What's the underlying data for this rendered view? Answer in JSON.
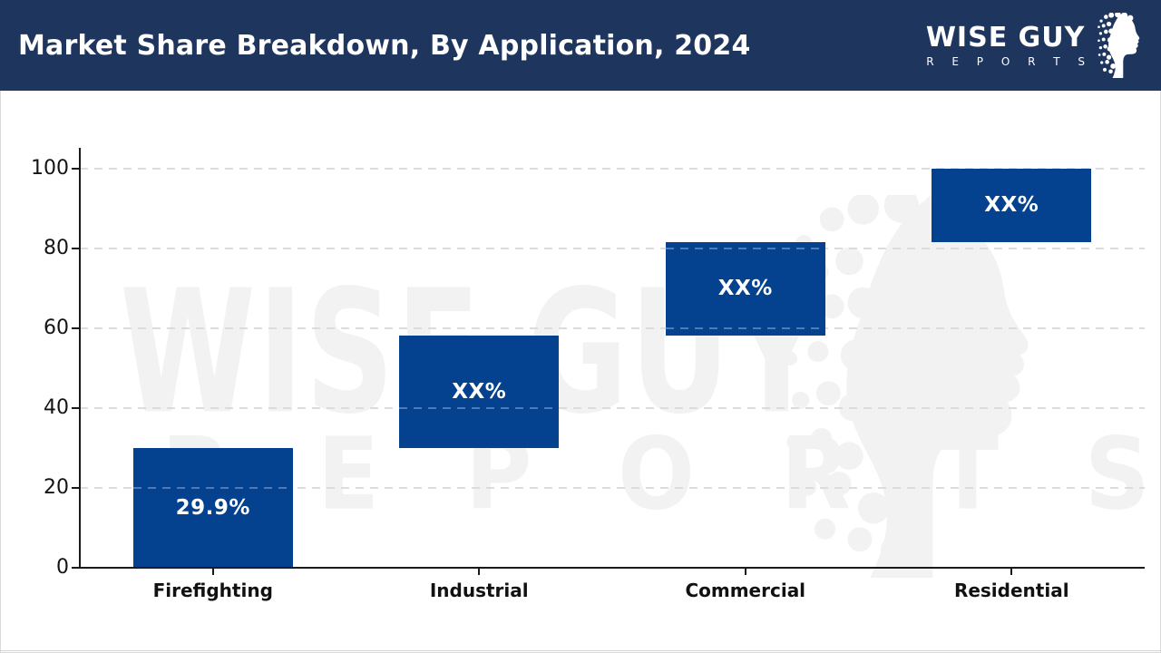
{
  "header": {
    "title": "Market Share Breakdown, By Application, 2024",
    "logo": {
      "line1": "WISE GUY",
      "line2": "R E P O R T S"
    }
  },
  "watermark": {
    "line1": "WISE GUY",
    "line2": "R E P O R T S"
  },
  "colors": {
    "header_bg": "#1e355e",
    "bar_fill": "#04418f",
    "axis": "#1a1a1a",
    "gridline": "#dcdcdc",
    "watermark": "#f2f2f2",
    "title_text": "#ffffff",
    "bar_label_text": "#ffffff"
  },
  "chart_data": {
    "type": "bar",
    "subtype": "waterfall",
    "title": "Market Share Breakdown, By Application, 2024",
    "xlabel": "",
    "ylabel": "",
    "categories": [
      "Firefighting",
      "Industrial",
      "Commercial",
      "Residential"
    ],
    "segments": [
      {
        "category": "Firefighting",
        "start": 0,
        "end": 29.9,
        "label": "29.9%"
      },
      {
        "category": "Industrial",
        "start": 29.9,
        "end": 58.2,
        "label": "XX%"
      },
      {
        "category": "Commercial",
        "start": 58.2,
        "end": 81.6,
        "label": "XX%"
      },
      {
        "category": "Residential",
        "start": 81.6,
        "end": 100,
        "label": "XX%"
      }
    ],
    "yticks": [
      0,
      20,
      40,
      60,
      80,
      100
    ],
    "ylim": [
      0,
      105
    ],
    "grid": "horizontal-dashed",
    "legend": "none"
  }
}
